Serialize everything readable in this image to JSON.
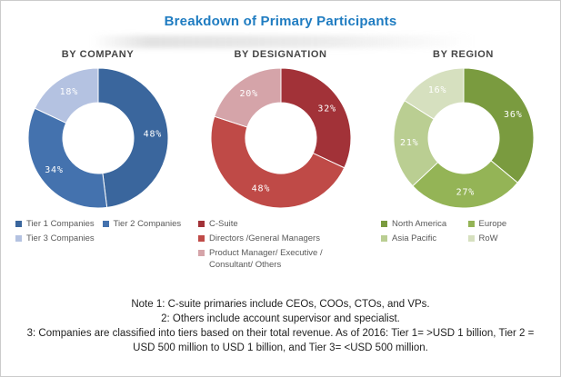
{
  "page": {
    "title": "Breakdown of Primary Participants",
    "title_color": "#1f7cc1"
  },
  "chart_data": [
    {
      "type": "pie",
      "subtype": "donut",
      "title": "BY COMPANY",
      "categories": [
        "Tier 1 Companies",
        "Tier 2 Companies",
        "Tier 3 Companies"
      ],
      "values": [
        48,
        34,
        18
      ],
      "unit": "%",
      "colors": [
        "#3a669d",
        "#4472ae",
        "#b4c2e1"
      ],
      "legend_position": "bottom",
      "legend_columns": 2,
      "start_angle_deg": 0,
      "direction": "clockwise"
    },
    {
      "type": "pie",
      "subtype": "donut",
      "title": "BY DESIGNATION",
      "categories": [
        "C-Suite",
        "Directors /General Managers",
        "Product Manager/ Executive / Consultant/ Others"
      ],
      "values": [
        32,
        48,
        20
      ],
      "unit": "%",
      "colors": [
        "#a23238",
        "#bf4a47",
        "#d5a4a9"
      ],
      "legend_position": "bottom",
      "legend_columns": 1,
      "start_angle_deg": 0,
      "direction": "clockwise"
    },
    {
      "type": "pie",
      "subtype": "donut",
      "title": "BY REGION",
      "categories": [
        "North America",
        "Europe",
        "Asia Pacific",
        "RoW"
      ],
      "values": [
        36,
        27,
        21,
        16
      ],
      "unit": "%",
      "colors": [
        "#7a9b3f",
        "#94b456",
        "#bace92",
        "#d6e0bf"
      ],
      "legend_position": "bottom",
      "legend_columns": 2,
      "start_angle_deg": 0,
      "direction": "clockwise"
    }
  ],
  "notes": {
    "line1": "Note 1: C-suite primaries include CEOs, COOs, CTOs, and VPs.",
    "line2": "2: Others include account supervisor and specialist.",
    "line3": "3: Companies are classified into tiers based on their total revenue. As of 2016: Tier 1= >USD 1 billion, Tier 2 = USD 500 million to USD 1 billion, and Tier 3= <USD 500 million."
  }
}
